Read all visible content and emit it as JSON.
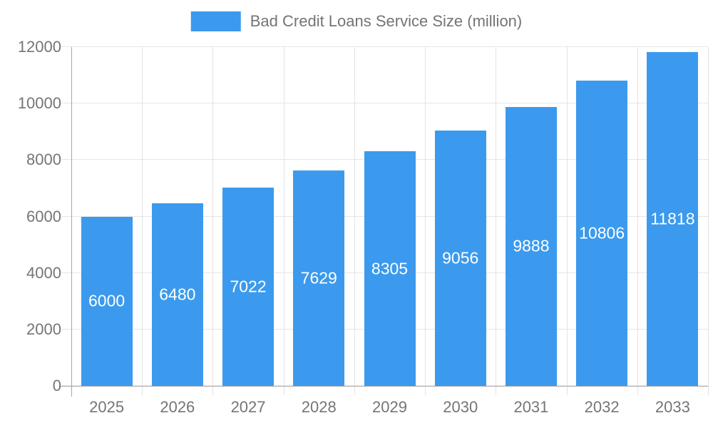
{
  "legend": {
    "label": "Bad Credit Loans Service Size (million)"
  },
  "chart_data": {
    "type": "bar",
    "title": "Bad Credit Loans Service Size (million)",
    "categories": [
      "2025",
      "2026",
      "2027",
      "2028",
      "2029",
      "2030",
      "2031",
      "2032",
      "2033"
    ],
    "values": [
      6000,
      6480,
      7022,
      7629,
      8305,
      9056,
      9888,
      10806,
      11818
    ],
    "xlabel": "",
    "ylabel": "",
    "ylim": [
      0,
      12000
    ],
    "yticks": [
      0,
      2000,
      4000,
      6000,
      8000,
      10000,
      12000
    ],
    "grid": true,
    "legend_position": "top-center",
    "bar_color": "#3b9aed",
    "bar_label_color": "#ffffff",
    "axis_text_color": "#757575"
  }
}
